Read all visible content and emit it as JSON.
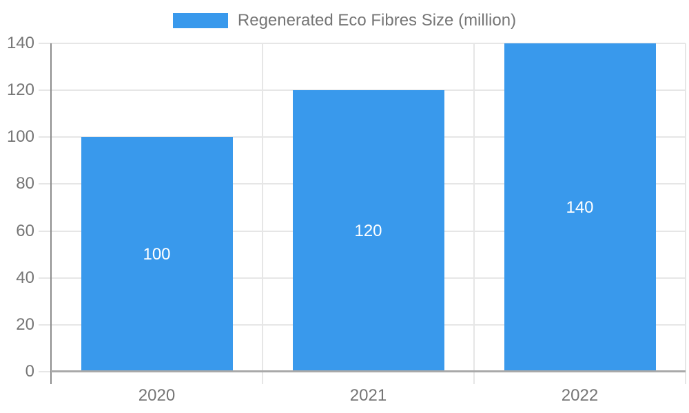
{
  "chart_data": {
    "type": "bar",
    "title": "Regenerated Eco Fibres Size (million)",
    "legend": {
      "label": "Regenerated Eco Fibres Size (million)",
      "position": "top"
    },
    "categories": [
      "2020",
      "2021",
      "2022"
    ],
    "values": [
      100,
      120,
      140
    ],
    "bar_labels": [
      "100",
      "120",
      "140"
    ],
    "xlabel": "",
    "ylabel": "",
    "ylim": [
      0,
      140
    ],
    "yticks": [
      0,
      20,
      40,
      60,
      80,
      100,
      120,
      140
    ],
    "grid": true,
    "colors": {
      "bar": "#3999EC",
      "grid": "#e6e6e6",
      "axis": "#8c8c8c",
      "baseline": "#a9a9a9",
      "text": "#757575",
      "bar_label": "#ffffff",
      "background": "#ffffff"
    }
  }
}
